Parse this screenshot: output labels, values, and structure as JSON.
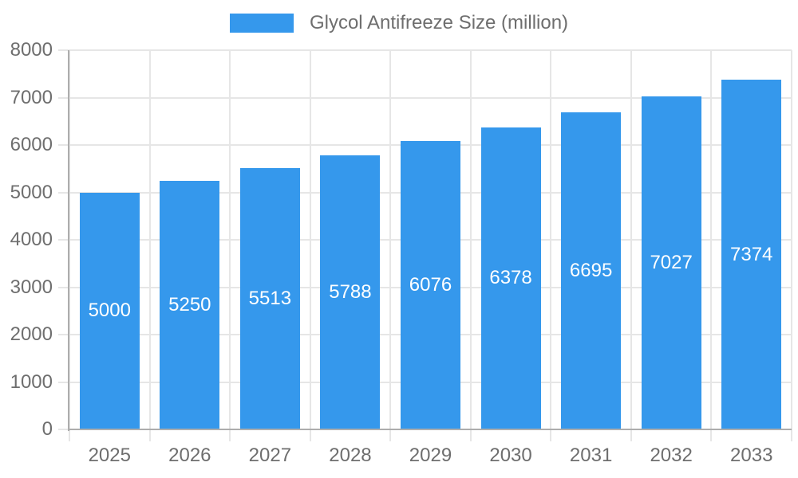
{
  "chart_data": {
    "type": "bar",
    "title": "Glycol Antifreeze Size (million)",
    "legend": {
      "position": "top",
      "label": "Glycol Antifreeze Size (million)"
    },
    "categories": [
      "2025",
      "2026",
      "2027",
      "2028",
      "2029",
      "2030",
      "2031",
      "2032",
      "2033"
    ],
    "series": [
      {
        "name": "Glycol Antifreeze Size (million)",
        "values": [
          5000,
          5250,
          5513,
          5788,
          6076,
          6378,
          6695,
          7027,
          7374
        ]
      }
    ],
    "data_labels": [
      "5000",
      "5250",
      "5513",
      "5788",
      "6076",
      "6378",
      "6695",
      "7027",
      "7374"
    ],
    "xlabel": "",
    "ylabel": "",
    "ylim": [
      0,
      8000
    ],
    "ytick_step": 1000,
    "yticks": [
      0,
      1000,
      2000,
      3000,
      4000,
      5000,
      6000,
      7000,
      8000
    ],
    "grid": true,
    "colors": {
      "bar": "#3598EC",
      "bar_value_text": "#ffffff",
      "tick_text": "#6e6e6e",
      "legend_text": "#6e6e6e",
      "gridline": "#e6e6e6",
      "axis_border": "#adadad",
      "background": "#ffffff"
    }
  }
}
